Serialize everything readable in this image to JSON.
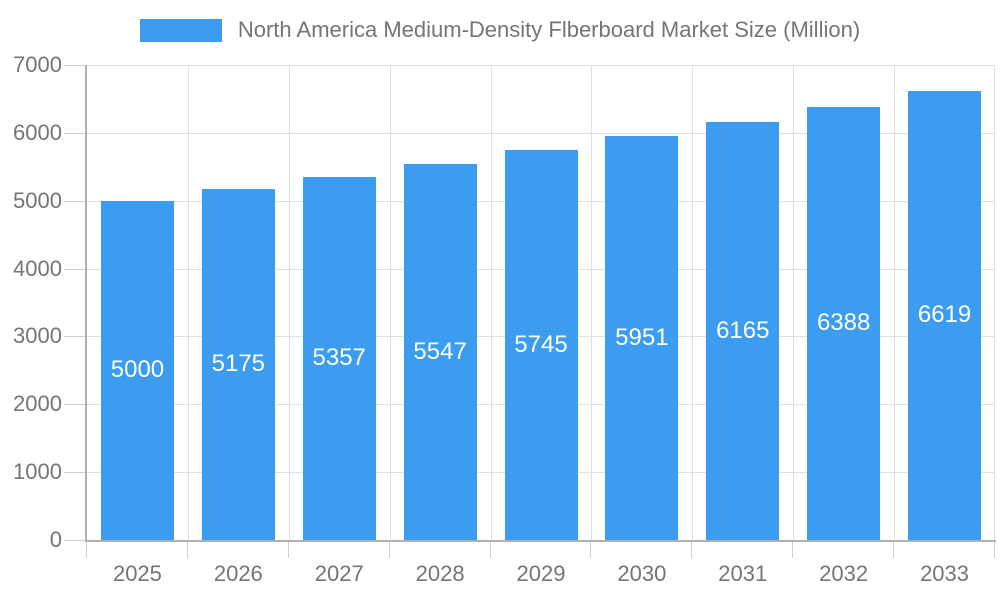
{
  "chart_data": {
    "type": "bar",
    "title": "North America Medium-Density Flberboard Market Size (Million)",
    "categories": [
      "2025",
      "2026",
      "2027",
      "2028",
      "2029",
      "2030",
      "2031",
      "2032",
      "2033"
    ],
    "values": [
      5000,
      5175,
      5357,
      5547,
      5745,
      5951,
      6165,
      6388,
      6619
    ],
    "xlabel": "",
    "ylabel": "",
    "ylim": [
      0,
      7000
    ],
    "y_ticks": [
      0,
      1000,
      2000,
      3000,
      4000,
      5000,
      6000,
      7000
    ],
    "grid": true,
    "legend_position": "top",
    "value_labels": "inside-center",
    "colors": {
      "bar": "#3B9CF0",
      "axis_text": "#757575",
      "gridline": "#e0e0e0",
      "axis_line": "#b0b0b0",
      "tick_mark": "#cfcfcf",
      "value_label": "#ffffff",
      "background": "#ffffff"
    }
  }
}
